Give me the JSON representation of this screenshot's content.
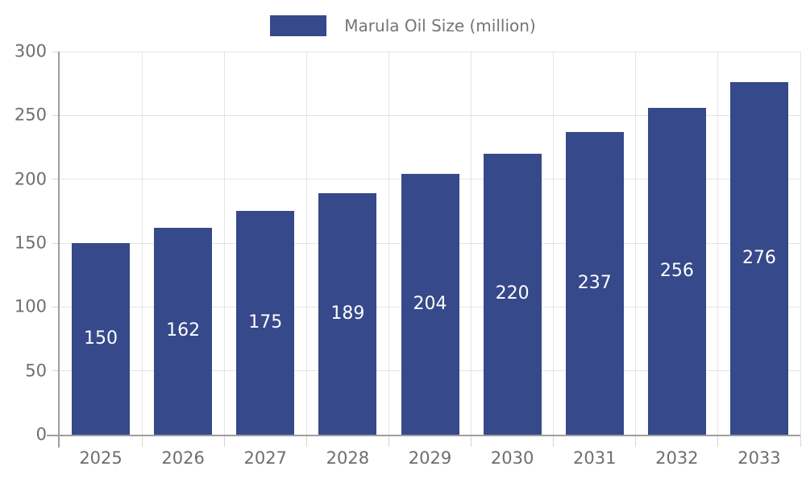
{
  "chart_data": {
    "type": "bar",
    "title": "",
    "categories": [
      "2025",
      "2026",
      "2027",
      "2028",
      "2029",
      "2030",
      "2031",
      "2032",
      "2033"
    ],
    "series": [
      {
        "name": "Marula Oil Size (million)",
        "values": [
          150,
          162,
          175,
          189,
          204,
          220,
          237,
          256,
          276
        ]
      }
    ],
    "xlabel": "",
    "ylabel": "",
    "ylim": [
      0,
      300
    ],
    "yticks": [
      0,
      50,
      100,
      150,
      200,
      250,
      300
    ],
    "grid": true,
    "legend_position": "top",
    "bar_color": "#36498A",
    "bar_label_color": "#FFFFFF",
    "axis_line_color": "#9E9E9E",
    "gridline_color": "#E4E4E4",
    "tick_color": "#D6D6D6",
    "axis_text_color": "#6E6E6E",
    "legend_text_color": "#757575",
    "background_color": "#FFFFFF"
  }
}
